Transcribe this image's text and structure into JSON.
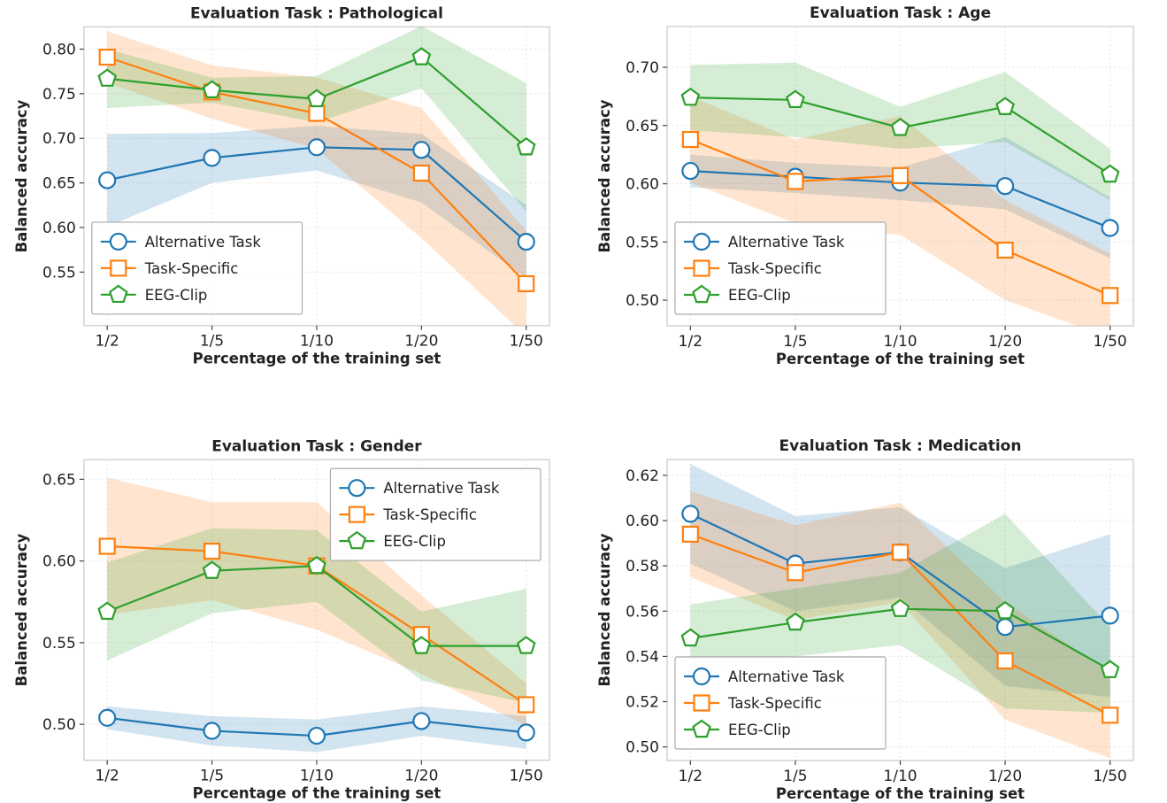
{
  "page": {
    "background": "#ffffff"
  },
  "colors": {
    "alternative": "#1f77b4",
    "task_specific": "#ff7f0e",
    "eeg_clip": "#2ca02c",
    "band_opacity": 0.2
  },
  "legend_labels": [
    "Alternative Task",
    "Task-Specific",
    "EEG-Clip"
  ],
  "chart_data": [
    {
      "id": "pathological",
      "type": "line",
      "title": "Evaluation Task : Pathological",
      "xlabel": "Percentage of the training set",
      "ylabel": "Balanced accuracy",
      "categories": [
        "1/2",
        "1/5",
        "1/10",
        "1/20",
        "1/50"
      ],
      "ylim": [
        0.49,
        0.825
      ],
      "yticks": [
        0.55,
        0.6,
        0.65,
        0.7,
        0.75,
        0.8
      ],
      "legend_position": "lower-left",
      "grid": true,
      "series": [
        {
          "name": "Alternative Task",
          "marker": "circle",
          "color": "#1f77b4",
          "values": [
            0.653,
            0.678,
            0.69,
            0.687,
            0.584
          ],
          "band_lower": [
            0.601,
            0.65,
            0.664,
            0.628,
            0.543
          ],
          "band_upper": [
            0.705,
            0.706,
            0.714,
            0.705,
            0.625
          ]
        },
        {
          "name": "Task-Specific",
          "marker": "square",
          "color": "#ff7f0e",
          "values": [
            0.791,
            0.752,
            0.728,
            0.661,
            0.537
          ],
          "band_lower": [
            0.762,
            0.722,
            0.688,
            0.588,
            0.478
          ],
          "band_upper": [
            0.82,
            0.782,
            0.768,
            0.734,
            0.596
          ]
        },
        {
          "name": "EEG-Clip",
          "marker": "pentagon",
          "color": "#2ca02c",
          "values": [
            0.767,
            0.754,
            0.744,
            0.791,
            0.69
          ],
          "band_lower": [
            0.734,
            0.74,
            0.718,
            0.756,
            0.618
          ],
          "band_upper": [
            0.8,
            0.768,
            0.77,
            0.826,
            0.762
          ]
        }
      ]
    },
    {
      "id": "age",
      "type": "line",
      "title": "Evaluation Task : Age",
      "xlabel": "Percentage of the training set",
      "ylabel": "Balanced accuracy",
      "categories": [
        "1/2",
        "1/5",
        "1/10",
        "1/20",
        "1/50"
      ],
      "ylim": [
        0.478,
        0.735
      ],
      "yticks": [
        0.5,
        0.55,
        0.6,
        0.65,
        0.7
      ],
      "legend_position": "lower-left",
      "grid": true,
      "series": [
        {
          "name": "Alternative Task",
          "marker": "circle",
          "color": "#1f77b4",
          "values": [
            0.611,
            0.606,
            0.601,
            0.598,
            0.562
          ],
          "band_lower": [
            0.597,
            0.592,
            0.586,
            0.578,
            0.536
          ],
          "band_upper": [
            0.625,
            0.618,
            0.614,
            0.64,
            0.588
          ]
        },
        {
          "name": "Task-Specific",
          "marker": "square",
          "color": "#ff7f0e",
          "values": [
            0.638,
            0.602,
            0.607,
            0.543,
            0.504
          ],
          "band_lower": [
            0.601,
            0.566,
            0.556,
            0.5,
            0.468
          ],
          "band_upper": [
            0.675,
            0.638,
            0.658,
            0.586,
            0.54
          ]
        },
        {
          "name": "EEG-Clip",
          "marker": "pentagon",
          "color": "#2ca02c",
          "values": [
            0.674,
            0.672,
            0.648,
            0.666,
            0.608
          ],
          "band_lower": [
            0.646,
            0.64,
            0.63,
            0.636,
            0.586
          ],
          "band_upper": [
            0.702,
            0.704,
            0.666,
            0.696,
            0.63
          ]
        }
      ]
    },
    {
      "id": "gender",
      "type": "line",
      "title": "Evaluation Task : Gender",
      "xlabel": "Percentage of the training set",
      "ylabel": "Balanced accuracy",
      "categories": [
        "1/2",
        "1/5",
        "1/10",
        "1/20",
        "1/50"
      ],
      "ylim": [
        0.478,
        0.662
      ],
      "yticks": [
        0.5,
        0.55,
        0.6,
        0.65
      ],
      "legend_position": "upper-right",
      "grid": true,
      "series": [
        {
          "name": "Alternative Task",
          "marker": "circle",
          "color": "#1f77b4",
          "values": [
            0.504,
            0.496,
            0.493,
            0.502,
            0.495
          ],
          "band_lower": [
            0.497,
            0.487,
            0.483,
            0.493,
            0.485
          ],
          "band_upper": [
            0.511,
            0.505,
            0.503,
            0.511,
            0.505
          ]
        },
        {
          "name": "Task-Specific",
          "marker": "square",
          "color": "#ff7f0e",
          "values": [
            0.609,
            0.606,
            0.597,
            0.555,
            0.512
          ],
          "band_lower": [
            0.567,
            0.576,
            0.558,
            0.531,
            0.499
          ],
          "band_upper": [
            0.651,
            0.636,
            0.636,
            0.579,
            0.525
          ]
        },
        {
          "name": "EEG-Clip",
          "marker": "pentagon",
          "color": "#2ca02c",
          "values": [
            0.569,
            0.594,
            0.597,
            0.548,
            0.548
          ],
          "band_lower": [
            0.539,
            0.568,
            0.575,
            0.527,
            0.513
          ],
          "band_upper": [
            0.599,
            0.62,
            0.619,
            0.569,
            0.583
          ]
        }
      ]
    },
    {
      "id": "medication",
      "type": "line",
      "title": "Evaluation Task : Medication",
      "xlabel": "Percentage of the training set",
      "ylabel": "Balanced accuracy",
      "categories": [
        "1/2",
        "1/5",
        "1/10",
        "1/20",
        "1/50"
      ],
      "ylim": [
        0.494,
        0.627
      ],
      "yticks": [
        0.5,
        0.52,
        0.54,
        0.56,
        0.58,
        0.6,
        0.62
      ],
      "legend_position": "lower-left",
      "grid": true,
      "series": [
        {
          "name": "Alternative Task",
          "marker": "circle",
          "color": "#1f77b4",
          "values": [
            0.603,
            0.581,
            0.586,
            0.553,
            0.558
          ],
          "band_lower": [
            0.581,
            0.56,
            0.566,
            0.527,
            0.522
          ],
          "band_upper": [
            0.625,
            0.602,
            0.606,
            0.579,
            0.594
          ]
        },
        {
          "name": "Task-Specific",
          "marker": "square",
          "color": "#ff7f0e",
          "values": [
            0.594,
            0.577,
            0.586,
            0.538,
            0.514
          ],
          "band_lower": [
            0.575,
            0.556,
            0.564,
            0.512,
            0.495
          ],
          "band_upper": [
            0.613,
            0.598,
            0.608,
            0.564,
            0.533
          ]
        },
        {
          "name": "EEG-Clip",
          "marker": "pentagon",
          "color": "#2ca02c",
          "values": [
            0.548,
            0.555,
            0.561,
            0.56,
            0.534
          ],
          "band_lower": [
            0.533,
            0.54,
            0.545,
            0.517,
            0.515
          ],
          "band_upper": [
            0.563,
            0.57,
            0.577,
            0.603,
            0.553
          ]
        }
      ]
    }
  ]
}
